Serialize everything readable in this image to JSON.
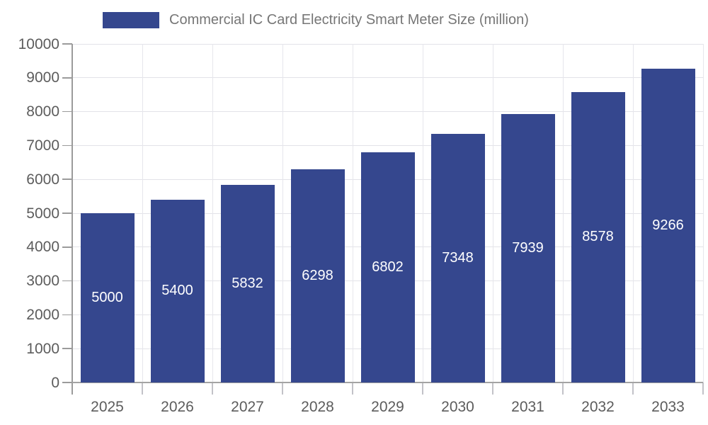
{
  "chart_data": {
    "type": "bar",
    "title": "Commercial IC Card Electricity Smart Meter Size (million)",
    "categories": [
      "2025",
      "2026",
      "2027",
      "2028",
      "2029",
      "2030",
      "2031",
      "2032",
      "2033"
    ],
    "values": [
      5000,
      5400,
      5832,
      6298,
      6802,
      7348,
      7939,
      8578,
      9266
    ],
    "xlabel": "",
    "ylabel": "",
    "ylim": [
      0,
      10000
    ],
    "ytick_step": 1000,
    "yticks": [
      0,
      1000,
      2000,
      3000,
      4000,
      5000,
      6000,
      7000,
      8000,
      9000,
      10000
    ],
    "grid": true,
    "legend_position": "top-left",
    "value_labels": "inside-center",
    "colors": {
      "bar": "#35478E",
      "value_label": "#ffffff",
      "axis_text": "#5c5c5c",
      "legend_text": "#767676",
      "gridline": "#e2e2e8",
      "axis_line": "#9b9b9b"
    }
  }
}
